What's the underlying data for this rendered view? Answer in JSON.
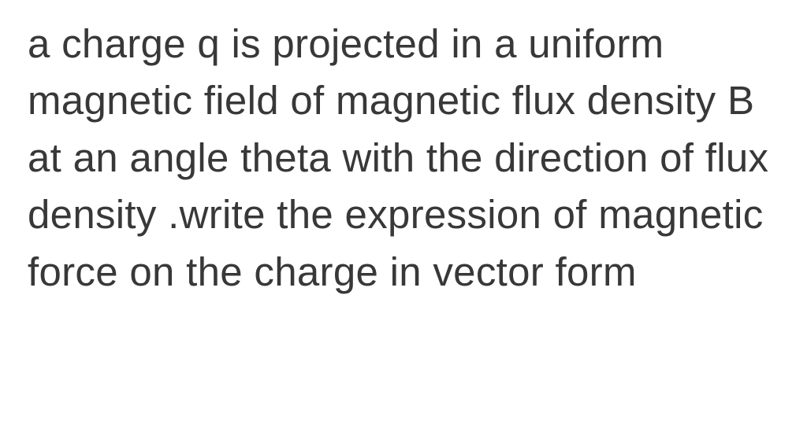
{
  "question": {
    "text": "a charge q is projected in a uniform magnetic field of magnetic flux density B at an angle theta with the direction of flux density .write the expression of magnetic force on the charge in vector form",
    "text_color": "#383838",
    "background_color": "#ffffff",
    "font_size": 51,
    "line_height": 1.42,
    "font_weight": 400
  }
}
